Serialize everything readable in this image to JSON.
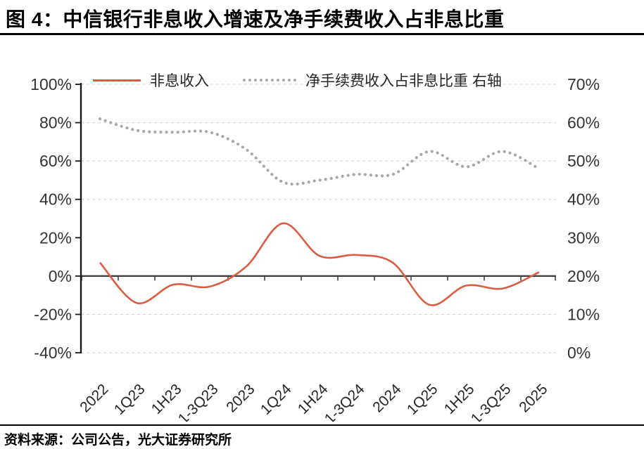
{
  "header": {
    "title": "图 4：中信银行非息收入增速及净手续费收入占非息比重"
  },
  "footer": {
    "source": "资料来源：公司公告，光大证券研究所"
  },
  "chart_data": {
    "type": "line",
    "title": "中信银行非息收入增速及净手续费收入占非息比重",
    "categories": [
      "2022",
      "1Q23",
      "1H23",
      "1-3Q23",
      "2023",
      "1Q24",
      "1H24",
      "1-3Q24",
      "2024",
      "1Q25",
      "1H25",
      "1-3Q25",
      "2025"
    ],
    "series": [
      {
        "name": "非息收入",
        "axis": "left",
        "line_style": "solid",
        "color": "#DB5C41",
        "values": [
          7,
          -14,
          -4.5,
          -5.5,
          5,
          27.5,
          10.5,
          11,
          7,
          -15,
          -5,
          -6.5,
          2
        ]
      },
      {
        "name": "净手续费收入占非息比重 右轴",
        "axis": "right",
        "line_style": "dotted",
        "color": "#A8A8A8",
        "values": [
          61,
          58,
          57.5,
          57.5,
          53,
          44.5,
          45,
          46.5,
          46.5,
          52.5,
          48.5,
          52.5,
          48
        ]
      }
    ],
    "left_axis": {
      "min": -40,
      "max": 100,
      "tick_step": 20,
      "tick_labels": [
        "100%",
        "80%",
        "60%",
        "40%",
        "20%",
        "0%",
        "-20%",
        "-40%"
      ]
    },
    "right_axis": {
      "min": 0,
      "max": 70,
      "tick_step": 10,
      "tick_labels": [
        "70%",
        "60%",
        "50%",
        "40%",
        "30%",
        "20%",
        "10%",
        "0%"
      ]
    },
    "legend": {
      "position": "top"
    },
    "grid": {
      "horizontal": true,
      "style": "dashed",
      "color": "#D9D9D9"
    },
    "zero_line_color": "#404040",
    "axis_text_color": "#333333"
  }
}
